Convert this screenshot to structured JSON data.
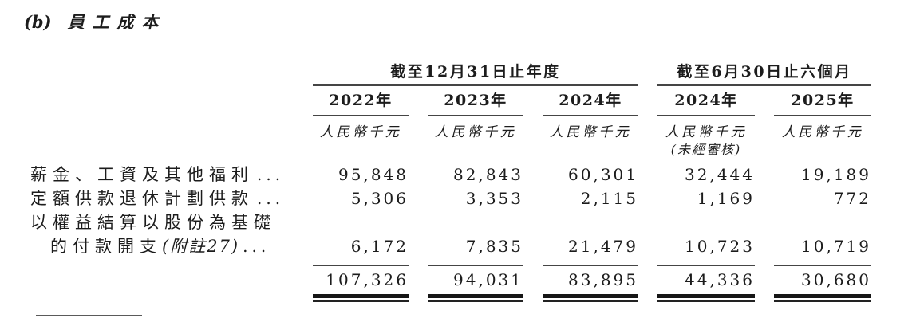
{
  "page": {
    "title_prefix": "(b)",
    "title": "員工成本"
  },
  "table": {
    "group_headers": [
      {
        "label": "截至12月31日止年度"
      },
      {
        "label": "截至6月30日止六個月"
      }
    ],
    "year_headers": [
      "2022年",
      "2023年",
      "2024年",
      "2024年",
      "2025年"
    ],
    "unit_label": "人民幣千元",
    "unaudited_note": "(未經審核)",
    "rows": [
      {
        "label": "薪金、工資及其他福利",
        "leader": "...",
        "values": [
          "95,848",
          "82,843",
          "60,301",
          "32,444",
          "19,189"
        ]
      },
      {
        "label": "定額供款退休計劃供款",
        "leader": "...",
        "values": [
          "5,306",
          "3,353",
          "2,115",
          "1,169",
          "772"
        ]
      },
      {
        "label_line1": "以權益結算以股份為基礎",
        "label_line2": "的付款開支",
        "label_line2_note": "(附註27)",
        "leader": "...",
        "values": [
          "6,172",
          "7,835",
          "21,479",
          "10,723",
          "10,719"
        ]
      }
    ],
    "totals": [
      "107,326",
      "94,031",
      "83,895",
      "44,336",
      "30,680"
    ]
  },
  "colors": {
    "text": "#1c1c1c",
    "thin_rule": "#454545",
    "double_rule_thick": "#161616",
    "double_rule_thin": "#222222",
    "footnote_rule": "#5a5a5a"
  }
}
